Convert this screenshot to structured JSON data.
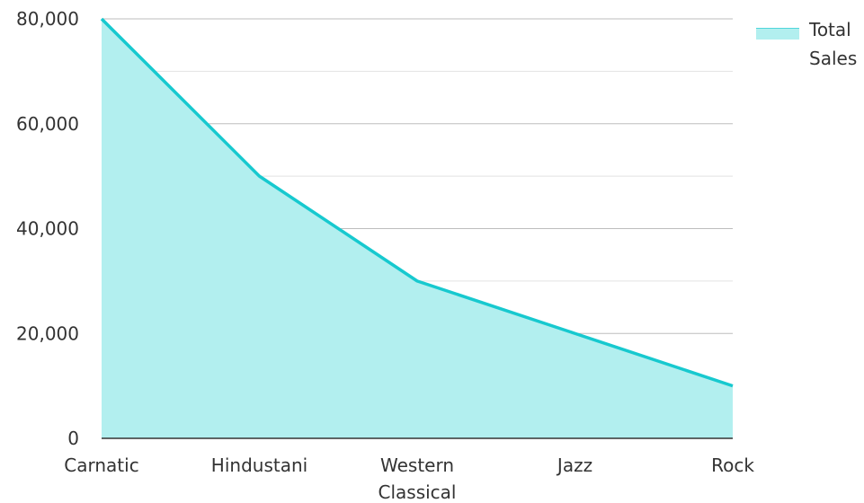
{
  "chart_data": {
    "type": "area",
    "title": "",
    "xlabel": "",
    "ylabel": "",
    "categories": [
      "Carnatic",
      "Hindustani",
      "Western Classical",
      "Jazz",
      "Rock"
    ],
    "category_lines": [
      [
        "Carnatic"
      ],
      [
        "Hindustani"
      ],
      [
        "Western",
        "Classical"
      ],
      [
        "Jazz"
      ],
      [
        "Rock"
      ]
    ],
    "series": [
      {
        "name": "Total Sales",
        "name_lines": [
          "Total",
          "Sales"
        ],
        "values": [
          80000,
          50000,
          30000,
          20000,
          10000
        ]
      }
    ],
    "ylim": [
      0,
      80000
    ],
    "yticks": [
      0,
      20000,
      40000,
      60000,
      80000
    ],
    "ytick_labels": [
      "0",
      "20,000",
      "40,000",
      "60,000",
      "80,000"
    ],
    "minor_gridlines": [
      10000,
      30000,
      50000,
      70000
    ],
    "grid": true,
    "legend_position": "top-right",
    "colors": {
      "line": "#17c9cf",
      "fill": "#b2efef",
      "grid_major": "#bdbdbd",
      "grid_minor": "#e2e2e2",
      "axis": "#333333"
    }
  }
}
